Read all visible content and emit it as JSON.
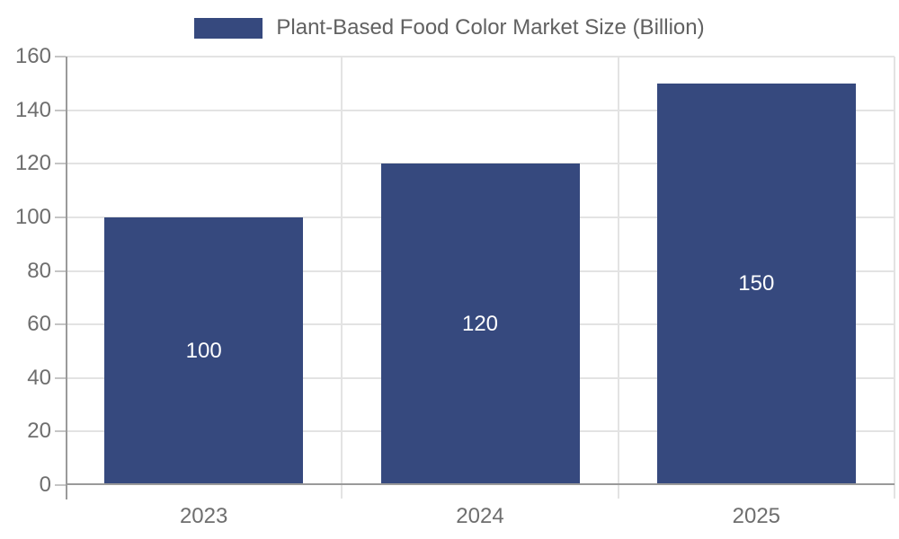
{
  "chart_data": {
    "type": "bar",
    "title": "Plant-Based Food Color Market Size (Billion)",
    "legend": {
      "label": "Plant-Based Food Color Market Size (Billion)",
      "position": "top-center"
    },
    "categories": [
      "2023",
      "2024",
      "2025"
    ],
    "values": [
      100,
      120,
      150
    ],
    "bar_labels": [
      "100",
      "120",
      "150"
    ],
    "xlabel": "",
    "ylabel": "",
    "ylim": [
      0,
      160
    ],
    "yticks": [
      0,
      20,
      40,
      60,
      80,
      100,
      120,
      140,
      160
    ],
    "grid": true,
    "colors": {
      "bar": "#36497e",
      "bar_label_text": "#ffffff",
      "axis_line": "#9a9a9a",
      "gridline": "#e3e3e3",
      "tick": "#c5c5c5",
      "tick_label_text": "#6e6e6e",
      "legend_text": "#616161",
      "background": "#ffffff"
    }
  }
}
